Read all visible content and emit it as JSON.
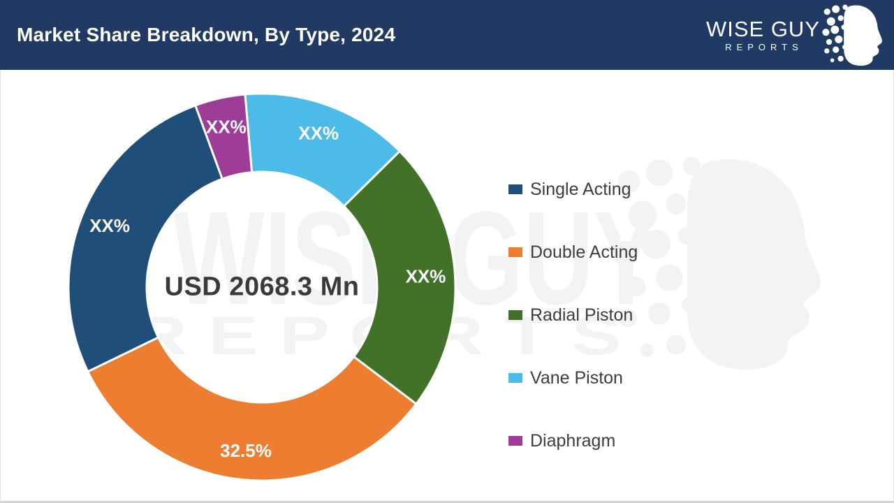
{
  "header": {
    "title": "Market Share Breakdown, By Type, 2024",
    "logo": {
      "brand": "WISE GUY",
      "sub": "REPORTS"
    }
  },
  "watermark": {
    "brand": "WISE GUY",
    "sub": "R E P O R T S"
  },
  "chart_data": {
    "type": "pie",
    "variant": "donut",
    "title": "Market Share Breakdown, By Type, 2024",
    "center_label": "USD 2068.3 Mn",
    "unit": "percent",
    "segments": [
      {
        "name": "Single Acting",
        "color": "#1F4E79",
        "value_pct": 26.6,
        "slice_label": "XX%"
      },
      {
        "name": "Double Acting",
        "color": "#ED7D31",
        "value_pct": 32.5,
        "slice_label": "32.5%"
      },
      {
        "name": "Radial Piston",
        "color": "#427228",
        "value_pct": 22.7,
        "slice_label": "XX%"
      },
      {
        "name": "Vane Piston",
        "color": "#4DBBE8",
        "value_pct": 14.0,
        "slice_label": "XX%"
      },
      {
        "name": "Diaphragm",
        "color": "#9E3D98",
        "value_pct": 4.2,
        "slice_label": "XX%"
      }
    ],
    "legend": {
      "position": "right",
      "order": [
        "Single Acting",
        "Double Acting",
        "Radial Piston",
        "Vane Piston",
        "Diaphragm"
      ]
    },
    "draw": {
      "start_angle_deg": -5,
      "clockwise_order": [
        "Vane Piston",
        "Radial Piston",
        "Double Acting",
        "Single Acting",
        "Diaphragm"
      ],
      "inner_radius_ratio": 0.6
    }
  }
}
